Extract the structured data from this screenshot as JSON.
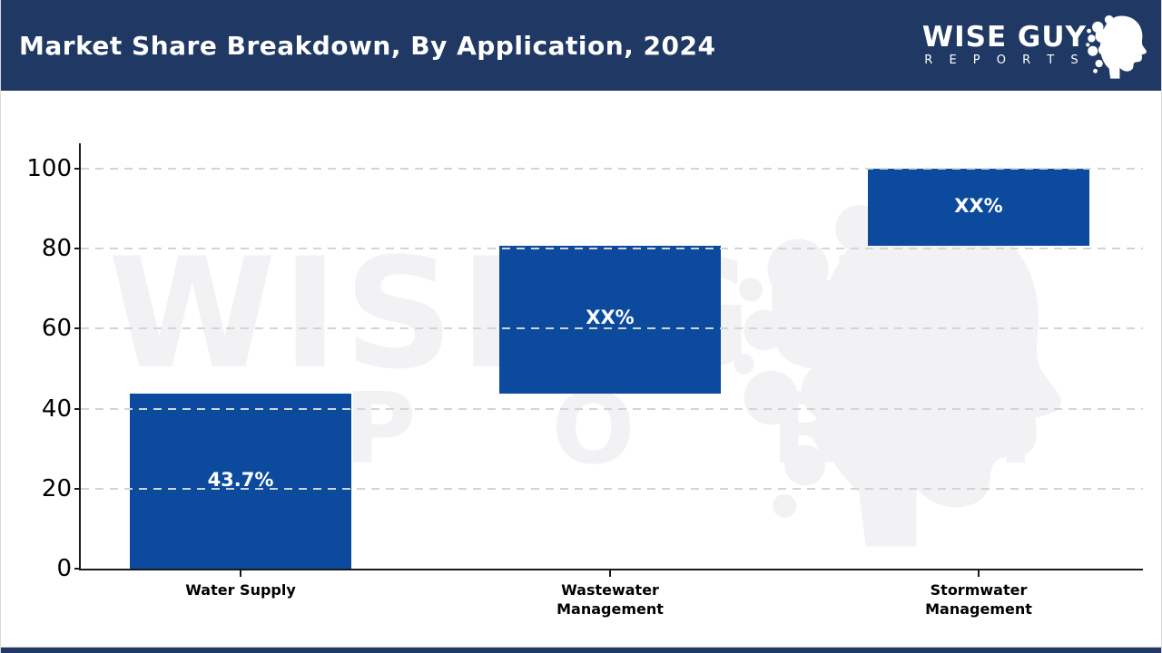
{
  "header": {
    "title": "Market Share Breakdown, By Application, 2024",
    "bg_color": "#1f3864",
    "brand": {
      "line1": "WISE GUY",
      "line2": "R E P O R T S"
    }
  },
  "watermark": {
    "line1": "WISE GUY",
    "line2": "P O R T S"
  },
  "chart_data": {
    "type": "bar",
    "subtype": "waterfall",
    "title": "Market Share Breakdown, By Application, 2024",
    "categories": [
      "Water Supply",
      "Wastewater\nManagement",
      "Stormwater\nManagement"
    ],
    "bars": [
      {
        "category": "Water Supply",
        "start": 0,
        "end": 43.7,
        "label": "43.7%"
      },
      {
        "category": "Wastewater Management",
        "start": 43.7,
        "end": 80.8,
        "label": "XX%"
      },
      {
        "category": "Stormwater Management",
        "start": 80.8,
        "end": 99.9,
        "label": "XX%"
      }
    ],
    "bar_color": "#0b4a9d",
    "value_label_color": "#ffffff",
    "yticks": [
      0,
      20,
      40,
      60,
      80,
      100
    ],
    "ylim": [
      0,
      100
    ],
    "xlabel": "",
    "ylabel": "",
    "grid": "horizontal dashed, drawn above bars",
    "legend": null
  }
}
